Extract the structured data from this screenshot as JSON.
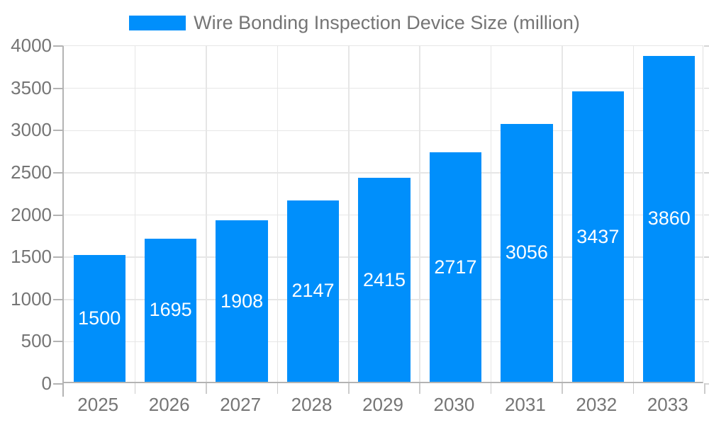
{
  "legend": {
    "swatch_color": "#008FFB"
  },
  "chart_data": {
    "type": "bar",
    "title": "Wire Bonding Inspection Device Size (million)",
    "categories": [
      "2025",
      "2026",
      "2027",
      "2028",
      "2029",
      "2030",
      "2031",
      "2032",
      "2033"
    ],
    "values": [
      1500,
      1695,
      1908,
      2147,
      2415,
      2717,
      3056,
      3437,
      3860
    ],
    "series_name": "Wire Bonding Inspection Device Size (million)",
    "xlabel": "",
    "ylabel": "",
    "ylim": [
      0,
      4000
    ],
    "yticks": [
      0,
      500,
      1000,
      1500,
      2000,
      2500,
      3000,
      3500,
      4000
    ],
    "grid": true,
    "legend_position": "top",
    "bar_color": "#008FFB",
    "value_label_color": "#ffffff",
    "axis_text_color": "#757575",
    "grid_color": "#e6e6e6",
    "axis_line_color": "#b3b3b3",
    "background": "#ffffff"
  }
}
